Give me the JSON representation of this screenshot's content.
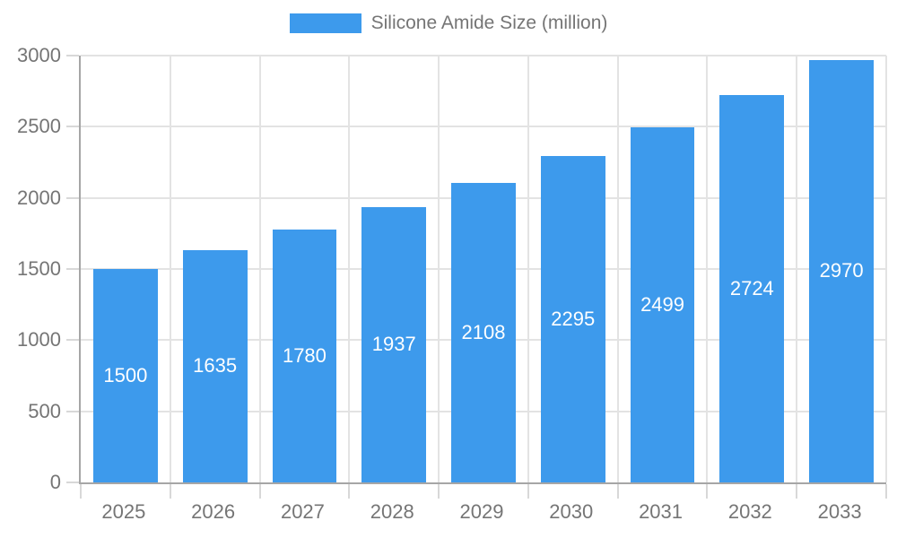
{
  "chart_data": {
    "type": "bar",
    "title": "",
    "legend": "Silicone Amide Size (million)",
    "categories": [
      "2025",
      "2026",
      "2027",
      "2028",
      "2029",
      "2030",
      "2031",
      "2032",
      "2033"
    ],
    "series": [
      {
        "name": "Silicone Amide Size (million)",
        "values": [
          1500,
          1635,
          1780,
          1937,
          2108,
          2295,
          2499,
          2724,
          2970
        ]
      }
    ],
    "value_labels_shown": true,
    "xlabel": "",
    "ylabel": "",
    "ylim": [
      0,
      3000
    ],
    "yticks": [
      0,
      500,
      1000,
      1500,
      2000,
      2500,
      3000
    ],
    "grid": true,
    "legend_position": "top",
    "colors": {
      "bar": "#3D9AEC",
      "value_label": "#FFFFFF",
      "axis_text": "#757575",
      "legend_text": "#757575",
      "gridline": "#E3E3E3",
      "axis_line": "#A6A6A6",
      "tick": "#D8D8D8",
      "background": "#FFFFFF"
    }
  }
}
